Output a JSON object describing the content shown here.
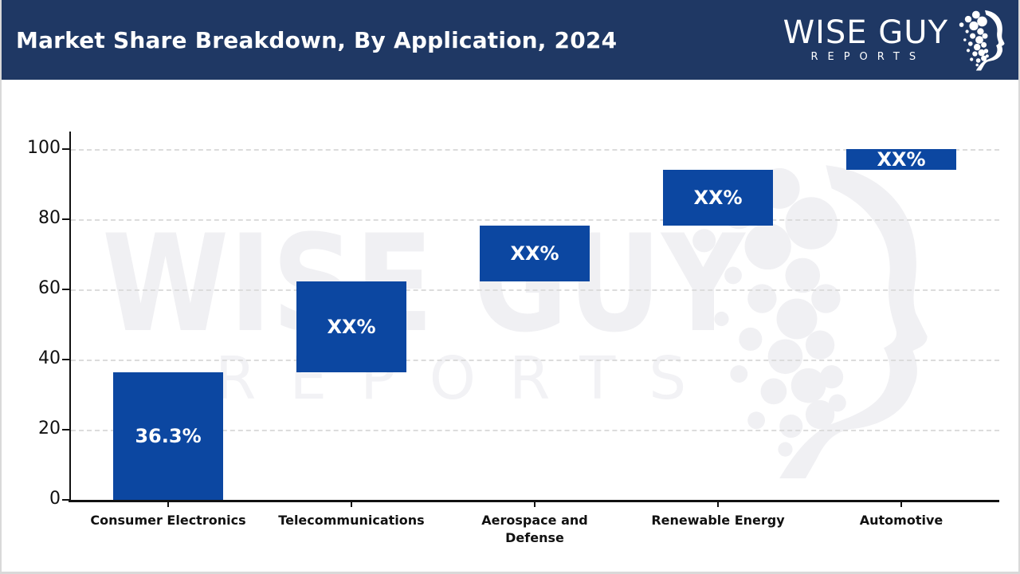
{
  "header": {
    "title": "Market Share Breakdown, By Application, 2024",
    "logo": {
      "line1": "WISE GUY",
      "line2": "REPORTS"
    }
  },
  "watermark": {
    "line1": "WISE GUY",
    "line2": "REPORTS"
  },
  "colors": {
    "header_bg": "#1f3864",
    "bar": "#0c47a1",
    "axis": "#111111",
    "grid": "#dcdcdc",
    "bar_label": "#ffffff",
    "watermark_text": "#f0f0f3",
    "logo_text": "#ffffff"
  },
  "chart_data": {
    "type": "bar",
    "subtype": "waterfall-floating-bars",
    "title": "Market Share Breakdown, By Application, 2024",
    "xlabel": "",
    "ylabel": "",
    "ylim": [
      0,
      100
    ],
    "yticks": [
      0,
      20,
      40,
      60,
      80,
      100
    ],
    "grid": "horizontal-dashed",
    "legend": "none",
    "categories": [
      "Consumer Electronics",
      "Telecommunications",
      "Aerospace and Defense",
      "Renewable Energy",
      "Automotive"
    ],
    "segments": [
      {
        "category": "Consumer Electronics",
        "start": 0,
        "end": 36.3,
        "label": "36.3%"
      },
      {
        "category": "Telecommunications",
        "start": 36.3,
        "end": 62.3,
        "label": "XX%"
      },
      {
        "category": "Aerospace and Defense",
        "start": 62.3,
        "end": 78.2,
        "label": "XX%"
      },
      {
        "category": "Renewable Energy",
        "start": 78.2,
        "end": 94.2,
        "label": "XX%"
      },
      {
        "category": "Automotive",
        "start": 94.2,
        "end": 100,
        "label": "XX%"
      }
    ]
  }
}
